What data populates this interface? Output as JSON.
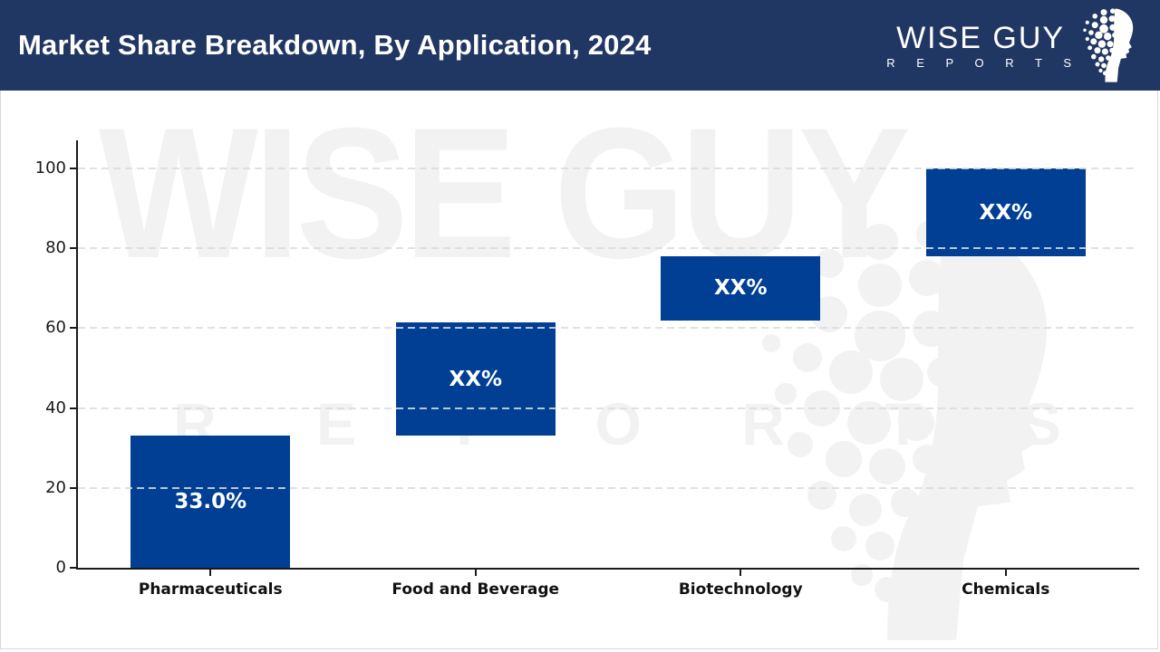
{
  "header": {
    "title": "Market Share Breakdown, By Application, 2024",
    "logo": {
      "name": "WISE GUY",
      "subtitle": "R E P O R T S",
      "icon": "dotted-head-profile"
    }
  },
  "watermark": {
    "line1": "WISE GUY",
    "line2": "R E P O R T S",
    "icon": "dotted-head-profile"
  },
  "chart_data": {
    "type": "bar",
    "variant": "waterfall",
    "title": "Market Share Breakdown, By Application, 2024",
    "xlabel": "",
    "ylabel": "",
    "categories": [
      "Pharmaceuticals",
      "Food and Beverage",
      "Biotechnology",
      "Chemicals"
    ],
    "segments": [
      {
        "category": "Pharmaceuticals",
        "start": 0,
        "end": 33,
        "label": "33.0%"
      },
      {
        "category": "Food and Beverage",
        "start": 33,
        "end": 61.5,
        "label": "XX%"
      },
      {
        "category": "Biotechnology",
        "start": 62,
        "end": 78,
        "label": "XX%"
      },
      {
        "category": "Chemicals",
        "start": 78,
        "end": 100,
        "label": "XX%"
      }
    ],
    "yticks": [
      0,
      20,
      40,
      60,
      80,
      100
    ],
    "ylim": [
      0,
      107
    ],
    "grid": "horizontal-dashed",
    "legend": "none",
    "colors": {
      "bar": "#003f94",
      "bar_label": "#ffffff",
      "axis": "#1a1a1a",
      "gridline": "#dcdcdc",
      "header_background": "#213763",
      "watermark": "#f2f2f2"
    }
  }
}
